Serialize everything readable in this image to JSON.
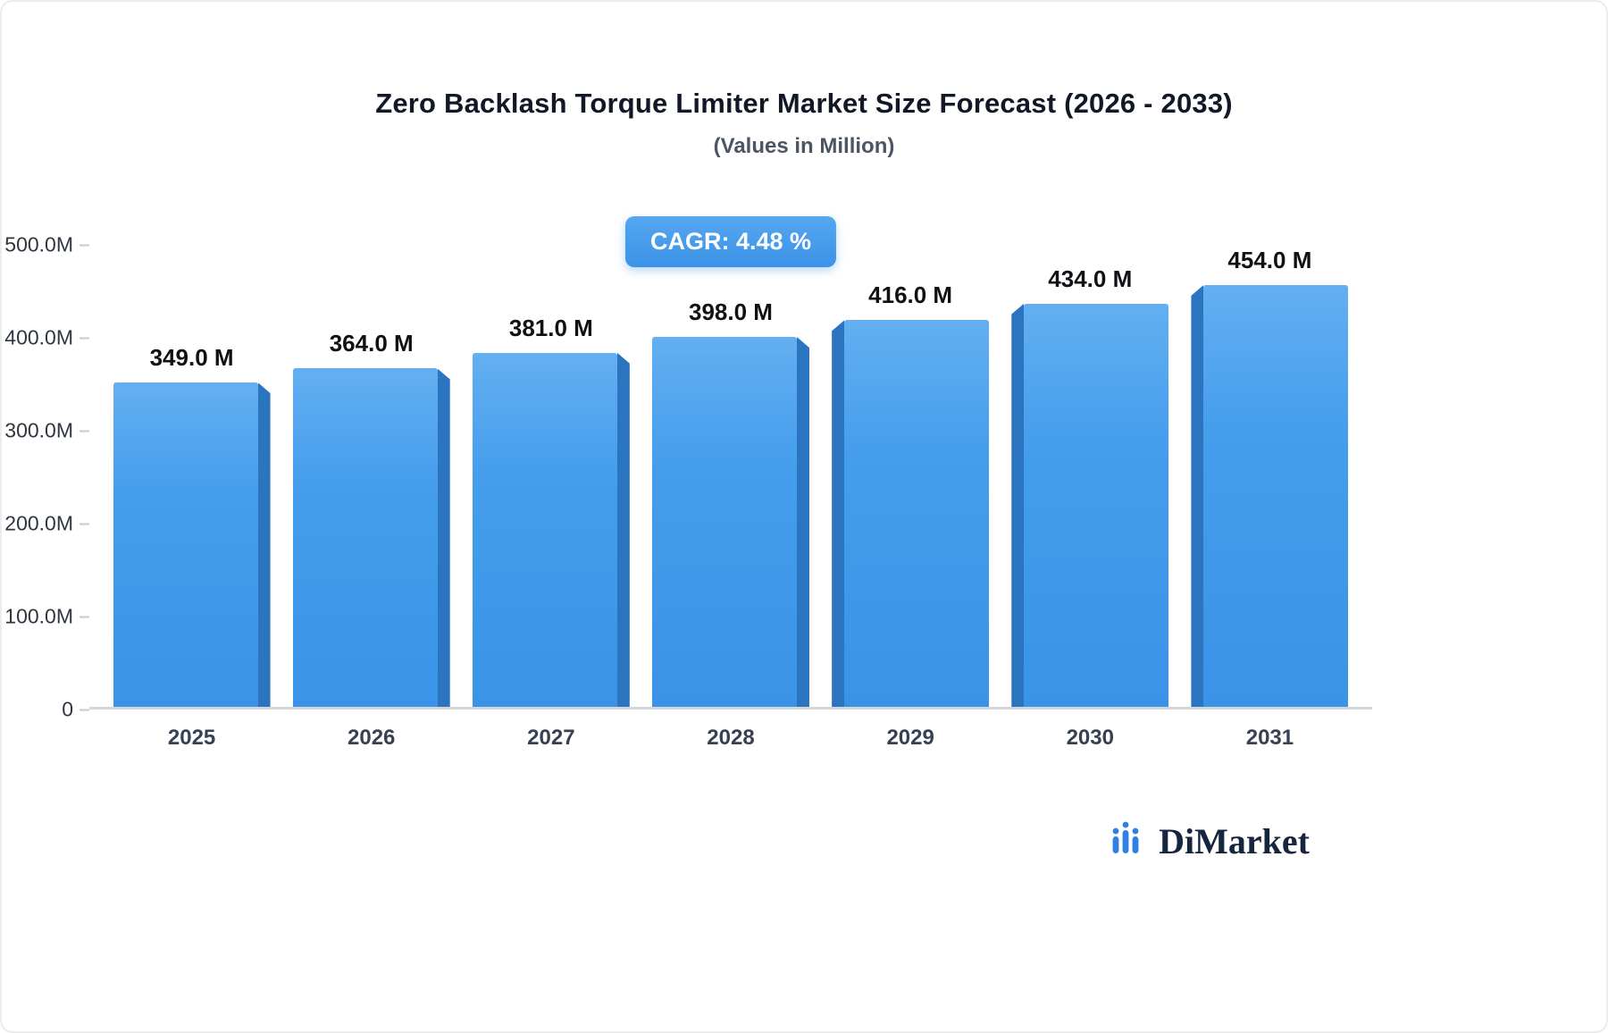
{
  "header": {
    "title": "Zero Backlash Torque Limiter Market Size Forecast (2026 - 2033)",
    "subtitle": "(Values in Million)"
  },
  "cagr_badge": "CAGR: 4.48 %",
  "chart_data": {
    "type": "bar",
    "title": "Zero Backlash Torque Limiter Market Size Forecast (2026 - 2033)",
    "subtitle": "(Values in Million)",
    "categories": [
      "2025",
      "2026",
      "2027",
      "2028",
      "2029",
      "2030",
      "2031"
    ],
    "values": [
      349.0,
      364.0,
      381.0,
      398.0,
      416.0,
      434.0,
      454.0
    ],
    "value_labels": [
      "349.0 M",
      "364.0 M",
      "381.0 M",
      "398.0 M",
      "416.0 M",
      "434.0 M",
      "454.0 M"
    ],
    "xlabel": "",
    "ylabel": "",
    "ylim": [
      0,
      500
    ],
    "y_ticks": [
      "500.0M",
      "400.0M",
      "300.0M",
      "200.0M",
      "100.0M",
      "0"
    ],
    "grid": false,
    "legend": false,
    "bar_color": "#3F9BEA",
    "bar_side_color": "#2B74BF"
  },
  "footer": {
    "logo_text": "DiMarket"
  }
}
